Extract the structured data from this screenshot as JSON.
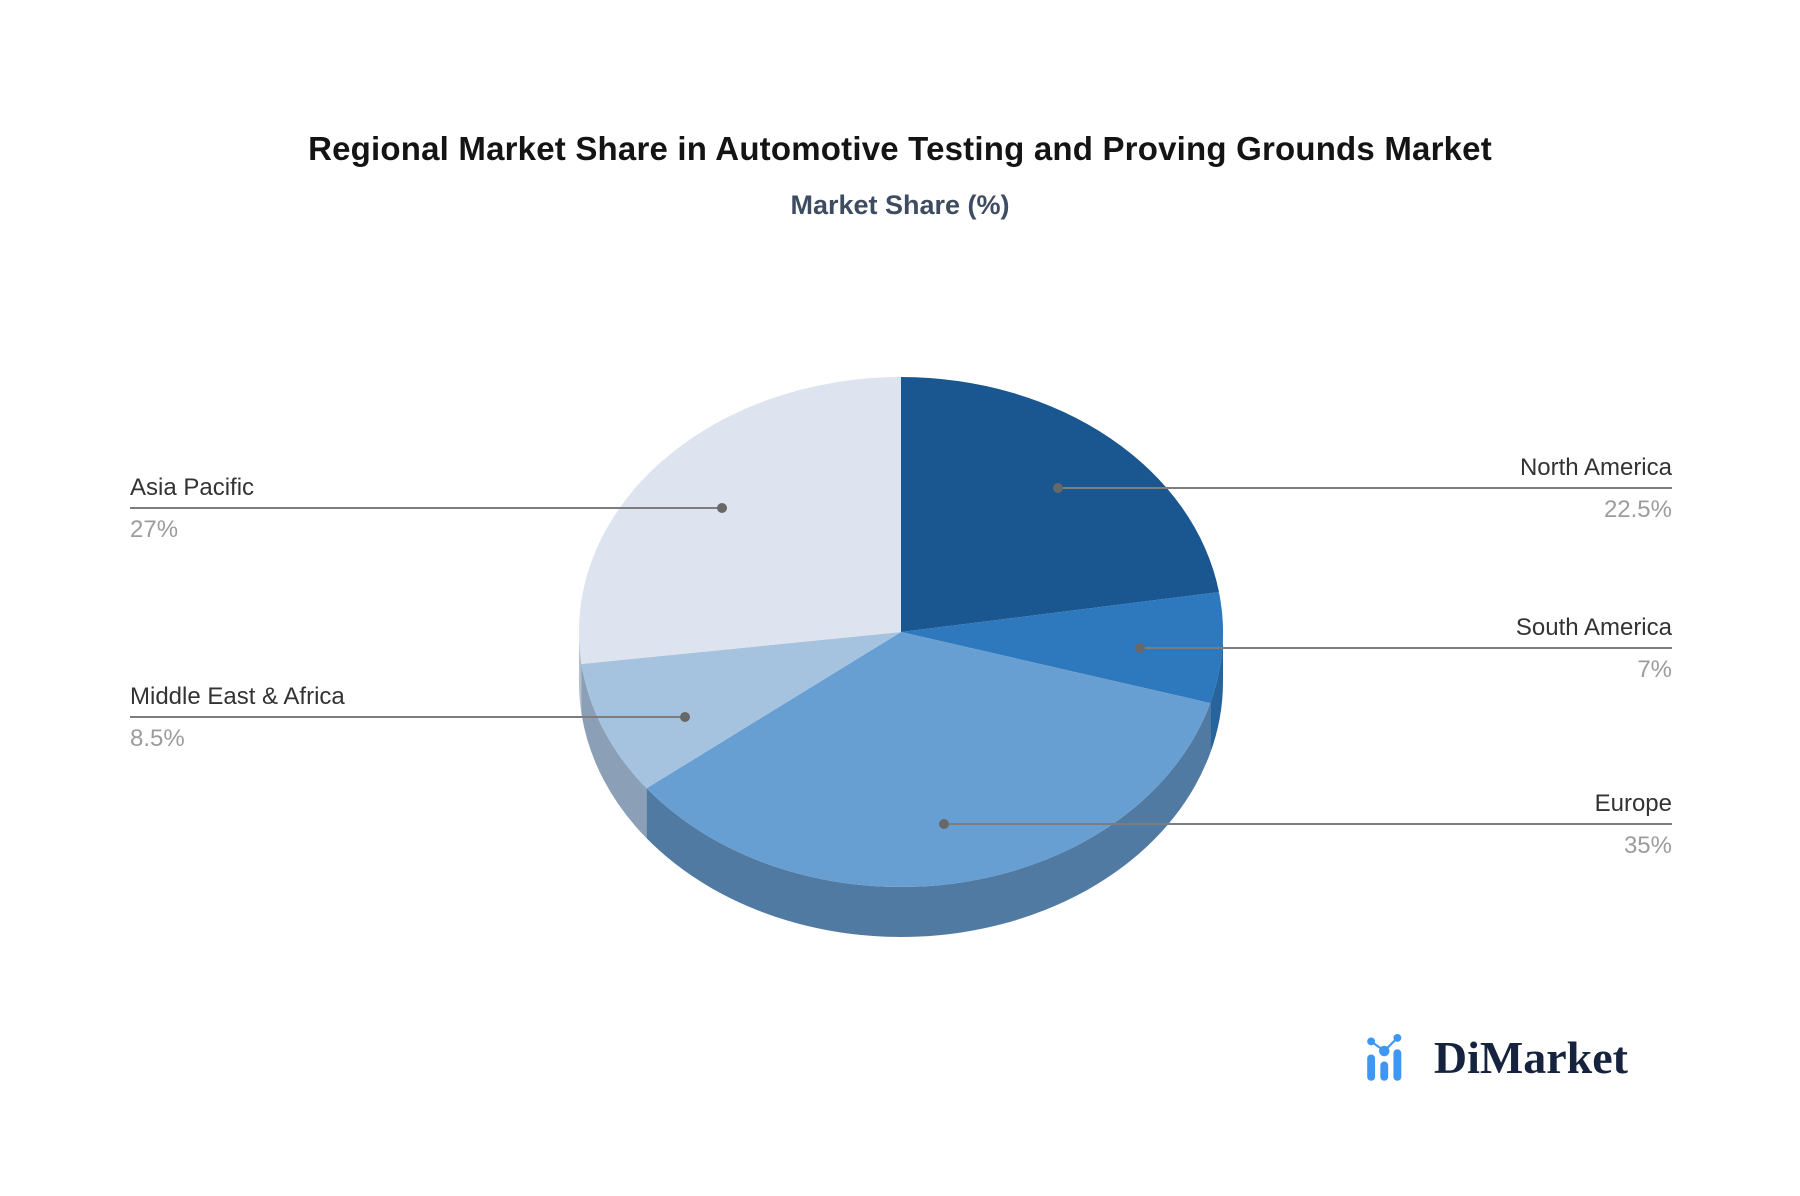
{
  "title": "Regional Market Share in Automotive Testing and Proving Grounds Market",
  "subtitle": "Market Share (%)",
  "brand": {
    "name": "DiMarket",
    "icon": "bar-chart-logo-icon",
    "text_color": "#16233e",
    "icon_color": "#3e97f4"
  },
  "colors": {
    "leader_line": "#7d7d7d",
    "leader_dot": "#686868",
    "label_text": "#333333",
    "value_text": "#9c9c9c"
  },
  "chart_data": {
    "type": "pie",
    "title": "Regional Market Share in Automotive Testing and Proving Grounds Market",
    "subtitle": "Market Share (%)",
    "unit": "%",
    "effect": "3d",
    "direction": "clockwise",
    "start_angle_deg": 0,
    "legend_position": "callouts",
    "slices": [
      {
        "label": "North America",
        "value": 22.5,
        "display": "22.5%",
        "color": "#1a568f",
        "depth_color": "#23609c"
      },
      {
        "label": "South America",
        "value": 7,
        "display": "7%",
        "color": "#2e79bd",
        "depth_color": "#27649c"
      },
      {
        "label": "Europe",
        "value": 35,
        "display": "35%",
        "color": "#689fd3",
        "depth_color": "#517aa2"
      },
      {
        "label": "Middle East & Africa",
        "value": 8.5,
        "display": "8.5%",
        "color": "#a5c2df",
        "depth_color": "#8ba0b6"
      },
      {
        "label": "Asia Pacific",
        "value": 27,
        "display": "27%",
        "color": "#dde4ef",
        "depth_color": "#b4bfcd"
      }
    ]
  }
}
